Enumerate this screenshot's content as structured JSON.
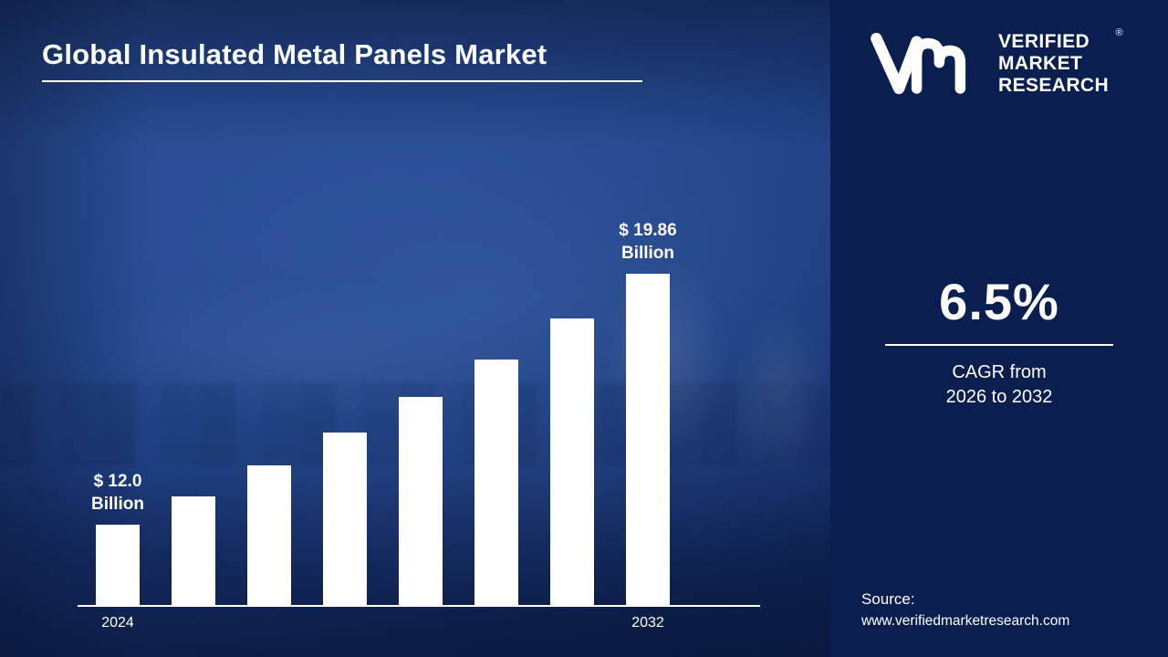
{
  "title": "Global Insulated Metal Panels Market",
  "branding": {
    "logo_lines": [
      "VERIFIED",
      "MARKET",
      "RESEARCH"
    ],
    "registered_mark": "®"
  },
  "stats": {
    "cagr_value": "6.5%",
    "cagr_caption_line1": "CAGR from",
    "cagr_caption_line2": "2026 to 2032"
  },
  "source": {
    "label": "Source:",
    "url": "www.verifiedmarketresearch.com"
  },
  "colors": {
    "bar": "#ffffff",
    "right_panel_bg": "#0a1f50",
    "text": "#ffffff"
  },
  "chart_data": {
    "type": "bar",
    "title": "Global Insulated Metal Panels Market",
    "unit": "USD Billion",
    "x_tick_labels": [
      "2024",
      "2032"
    ],
    "values": [
      12.0,
      12.9,
      13.86,
      14.89,
      16.0,
      17.19,
      18.48,
      19.86
    ],
    "labeled_values": {
      "first": "$ 12.0 Billion",
      "last": "$ 19.86 Billion"
    },
    "annotations": [
      {
        "index": 0,
        "lines": [
          "$ 12.0",
          "Billion"
        ]
      },
      {
        "index": 7,
        "lines": [
          "$ 19.86",
          "Billion"
        ]
      }
    ],
    "bar_color": "#ffffff",
    "axis": {
      "y_axis_visible": false,
      "x_baseline_visible": true,
      "gridlines": false
    },
    "layout_hint": {
      "legend": "none",
      "value_labels_on": "first_and_last_bars"
    }
  }
}
